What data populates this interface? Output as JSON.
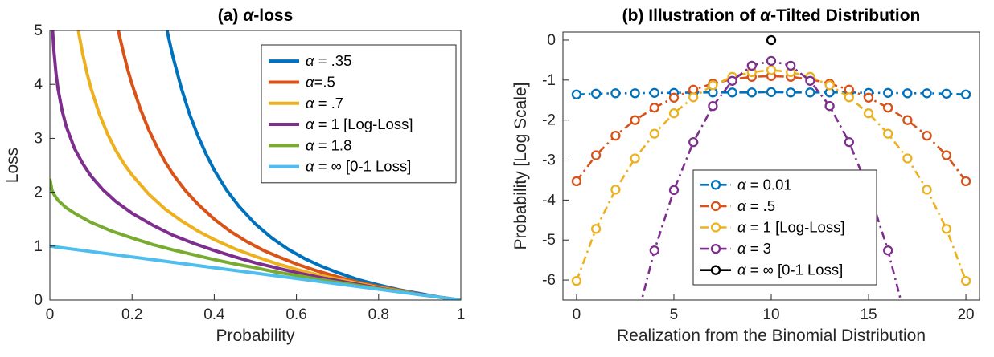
{
  "chart_data": [
    {
      "type": "line",
      "title": "(a) α-loss",
      "xlabel": "Probability",
      "ylabel": "Loss",
      "xlim": [
        0,
        1
      ],
      "ylim": [
        0,
        5
      ],
      "xticks": [
        0,
        0.2,
        0.4,
        0.6,
        0.8,
        1
      ],
      "xtick_labels": [
        "0",
        "0.2",
        "0.4",
        "0.6",
        "0.8",
        "1"
      ],
      "yticks": [
        0,
        1,
        2,
        3,
        4,
        5
      ],
      "ytick_labels": [
        "0",
        "1",
        "2",
        "3",
        "4",
        "5"
      ],
      "grid": false,
      "legend_position": "upper-right",
      "series": [
        {
          "name": "α = .35",
          "color": "#0072BD",
          "line": "solid",
          "marker": false,
          "points": [
            [
              0.28,
              5.19
            ],
            [
              0.29,
              4.83
            ],
            [
              0.3,
              4.5
            ],
            [
              0.32,
              3.93
            ],
            [
              0.34,
              3.45
            ],
            [
              0.36,
              3.05
            ],
            [
              0.38,
              2.71
            ],
            [
              0.4,
              2.41
            ],
            [
              0.43,
              2.04
            ],
            [
              0.46,
              1.74
            ],
            [
              0.5,
              1.41
            ],
            [
              0.54,
              1.15
            ],
            [
              0.58,
              0.94
            ],
            [
              0.62,
              0.77
            ],
            [
              0.66,
              0.63
            ],
            [
              0.7,
              0.51
            ],
            [
              0.75,
              0.38
            ],
            [
              0.8,
              0.28
            ],
            [
              0.85,
              0.19
            ],
            [
              0.9,
              0.12
            ],
            [
              0.95,
              0.05
            ],
            [
              1,
              0
            ]
          ]
        },
        {
          "name": "α=.5",
          "color": "#D95319",
          "line": "solid",
          "marker": false,
          "points": [
            [
              0.16,
              5.25
            ],
            [
              0.17,
              4.88
            ],
            [
              0.18,
              4.56
            ],
            [
              0.19,
              4.26
            ],
            [
              0.2,
              4.0
            ],
            [
              0.22,
              3.55
            ],
            [
              0.24,
              3.17
            ],
            [
              0.26,
              2.85
            ],
            [
              0.28,
              2.57
            ],
            [
              0.3,
              2.33
            ],
            [
              0.33,
              2.03
            ],
            [
              0.36,
              1.78
            ],
            [
              0.4,
              1.5
            ],
            [
              0.44,
              1.27
            ],
            [
              0.48,
              1.08
            ],
            [
              0.52,
              0.92
            ],
            [
              0.56,
              0.79
            ],
            [
              0.6,
              0.67
            ],
            [
              0.65,
              0.54
            ],
            [
              0.7,
              0.43
            ],
            [
              0.75,
              0.33
            ],
            [
              0.8,
              0.25
            ],
            [
              0.85,
              0.18
            ],
            [
              0.9,
              0.11
            ],
            [
              0.95,
              0.05
            ],
            [
              1,
              0
            ]
          ]
        },
        {
          "name": "α = .7",
          "color": "#EDB120",
          "line": "solid",
          "marker": false,
          "points": [
            [
              0.065,
              5.2
            ],
            [
              0.07,
              4.96
            ],
            [
              0.08,
              4.56
            ],
            [
              0.09,
              4.22
            ],
            [
              0.1,
              3.93
            ],
            [
              0.12,
              3.46
            ],
            [
              0.14,
              3.09
            ],
            [
              0.16,
              2.78
            ],
            [
              0.18,
              2.53
            ],
            [
              0.2,
              2.32
            ],
            [
              0.24,
              1.97
            ],
            [
              0.28,
              1.69
            ],
            [
              0.32,
              1.47
            ],
            [
              0.36,
              1.28
            ],
            [
              0.4,
              1.12
            ],
            [
              0.45,
              0.95
            ],
            [
              0.5,
              0.81
            ],
            [
              0.55,
              0.68
            ],
            [
              0.6,
              0.57
            ],
            [
              0.65,
              0.47
            ],
            [
              0.7,
              0.39
            ],
            [
              0.75,
              0.31
            ],
            [
              0.8,
              0.23
            ],
            [
              0.85,
              0.17
            ],
            [
              0.9,
              0.11
            ],
            [
              0.95,
              0.05
            ],
            [
              1,
              0
            ]
          ]
        },
        {
          "name": "α = 1 [Log-Loss]",
          "color": "#7E2F8E",
          "line": "solid",
          "marker": false,
          "points": [
            [
              0.005,
              5.3
            ],
            [
              0.007,
              4.96
            ],
            [
              0.01,
              4.61
            ],
            [
              0.015,
              4.2
            ],
            [
              0.02,
              3.91
            ],
            [
              0.03,
              3.51
            ],
            [
              0.04,
              3.22
            ],
            [
              0.06,
              2.81
            ],
            [
              0.08,
              2.53
            ],
            [
              0.1,
              2.3
            ],
            [
              0.13,
              2.04
            ],
            [
              0.16,
              1.83
            ],
            [
              0.2,
              1.61
            ],
            [
              0.25,
              1.39
            ],
            [
              0.3,
              1.2
            ],
            [
              0.35,
              1.05
            ],
            [
              0.4,
              0.92
            ],
            [
              0.45,
              0.8
            ],
            [
              0.5,
              0.69
            ],
            [
              0.55,
              0.6
            ],
            [
              0.6,
              0.51
            ],
            [
              0.65,
              0.43
            ],
            [
              0.7,
              0.36
            ],
            [
              0.75,
              0.29
            ],
            [
              0.8,
              0.22
            ],
            [
              0.85,
              0.16
            ],
            [
              0.9,
              0.11
            ],
            [
              0.95,
              0.05
            ],
            [
              1,
              0
            ]
          ]
        },
        {
          "name": "α = 1.8",
          "color": "#77AC30",
          "line": "solid",
          "marker": false,
          "points": [
            [
              0,
              2.25
            ],
            [
              0.005,
              2.04
            ],
            [
              0.01,
              1.96
            ],
            [
              0.02,
              1.85
            ],
            [
              0.04,
              1.71
            ],
            [
              0.06,
              1.61
            ],
            [
              0.1,
              1.44
            ],
            [
              0.15,
              1.28
            ],
            [
              0.2,
              1.15
            ],
            [
              0.25,
              1.03
            ],
            [
              0.3,
              0.93
            ],
            [
              0.35,
              0.84
            ],
            [
              0.4,
              0.75
            ],
            [
              0.45,
              0.67
            ],
            [
              0.5,
              0.6
            ],
            [
              0.55,
              0.52
            ],
            [
              0.6,
              0.46
            ],
            [
              0.65,
              0.39
            ],
            [
              0.7,
              0.33
            ],
            [
              0.75,
              0.27
            ],
            [
              0.8,
              0.21
            ],
            [
              0.85,
              0.16
            ],
            [
              0.9,
              0.1
            ],
            [
              0.95,
              0.05
            ],
            [
              1,
              0
            ]
          ]
        },
        {
          "name": "α = ∞ [0-1 Loss]",
          "color": "#4DBEEE",
          "line": "solid",
          "marker": false,
          "points": [
            [
              0,
              1
            ],
            [
              1,
              0
            ]
          ]
        }
      ]
    },
    {
      "type": "line",
      "title": "(b) Illustration of α-Tilted Distribution",
      "xlabel": "Realization from the Binomial Distribution",
      "ylabel": "Probability [Log Scale]",
      "xlim": [
        -0.7,
        20.7
      ],
      "ylim": [
        -6.5,
        0.2
      ],
      "xticks": [
        0,
        5,
        10,
        15,
        20
      ],
      "xtick_labels": [
        "0",
        "5",
        "10",
        "15",
        "20"
      ],
      "yticks": [
        0,
        -1,
        -2,
        -3,
        -4,
        -5,
        -6
      ],
      "ytick_labels": [
        "0",
        "-1",
        "-2",
        "-3",
        "-4",
        "-5",
        "-6"
      ],
      "grid": false,
      "legend_position": "lower-center-left",
      "series": [
        {
          "name": "α = 0.01",
          "color": "#0072BD",
          "line": "dashdot",
          "marker": true,
          "points": [
            [
              0,
              -1.36
            ],
            [
              1,
              -1.34
            ],
            [
              2,
              -1.33
            ],
            [
              3,
              -1.33
            ],
            [
              4,
              -1.32
            ],
            [
              5,
              -1.32
            ],
            [
              6,
              -1.31
            ],
            [
              7,
              -1.31
            ],
            [
              8,
              -1.31
            ],
            [
              9,
              -1.31
            ],
            [
              10,
              -1.3
            ],
            [
              11,
              -1.31
            ],
            [
              12,
              -1.31
            ],
            [
              13,
              -1.31
            ],
            [
              14,
              -1.31
            ],
            [
              15,
              -1.32
            ],
            [
              16,
              -1.32
            ],
            [
              17,
              -1.33
            ],
            [
              18,
              -1.33
            ],
            [
              19,
              -1.34
            ],
            [
              20,
              -1.36
            ]
          ]
        },
        {
          "name": "α = .5",
          "color": "#D95319",
          "line": "dashdot",
          "marker": true,
          "points": [
            [
              0,
              -3.53
            ],
            [
              1,
              -2.88
            ],
            [
              2,
              -2.39
            ],
            [
              3,
              -2.0
            ],
            [
              4,
              -1.69
            ],
            [
              5,
              -1.44
            ],
            [
              6,
              -1.24
            ],
            [
              7,
              -1.09
            ],
            [
              8,
              -0.98
            ],
            [
              9,
              -0.92
            ],
            [
              10,
              -0.9
            ],
            [
              11,
              -0.92
            ],
            [
              12,
              -0.98
            ],
            [
              13,
              -1.09
            ],
            [
              14,
              -1.24
            ],
            [
              15,
              -1.44
            ],
            [
              16,
              -1.69
            ],
            [
              17,
              -2.0
            ],
            [
              18,
              -2.39
            ],
            [
              19,
              -2.88
            ],
            [
              20,
              -3.53
            ]
          ]
        },
        {
          "name": "α = 1 [Log-Loss]",
          "color": "#EDB120",
          "line": "dashdot",
          "marker": true,
          "points": [
            [
              0,
              -6.02
            ],
            [
              1,
              -4.72
            ],
            [
              2,
              -3.74
            ],
            [
              3,
              -2.96
            ],
            [
              4,
              -2.34
            ],
            [
              5,
              -1.83
            ],
            [
              6,
              -1.43
            ],
            [
              7,
              -1.13
            ],
            [
              8,
              -0.92
            ],
            [
              9,
              -0.8
            ],
            [
              10,
              -0.75
            ],
            [
              11,
              -0.8
            ],
            [
              12,
              -0.92
            ],
            [
              13,
              -1.13
            ],
            [
              14,
              -1.43
            ],
            [
              15,
              -1.83
            ],
            [
              16,
              -2.34
            ],
            [
              17,
              -2.96
            ],
            [
              18,
              -3.74
            ],
            [
              19,
              -4.72
            ],
            [
              20,
              -6.02
            ]
          ]
        },
        {
          "name": "α = 3",
          "color": "#7E2F8E",
          "line": "dashdot",
          "marker": true,
          "points": [
            [
              3,
              -7.15
            ],
            [
              4,
              -5.26
            ],
            [
              5,
              -3.75
            ],
            [
              6,
              -2.55
            ],
            [
              7,
              -1.65
            ],
            [
              8,
              -1.02
            ],
            [
              9,
              -0.64
            ],
            [
              10,
              -0.52
            ],
            [
              11,
              -0.64
            ],
            [
              12,
              -1.02
            ],
            [
              13,
              -1.65
            ],
            [
              14,
              -2.55
            ],
            [
              15,
              -3.75
            ],
            [
              16,
              -5.26
            ],
            [
              17,
              -7.15
            ]
          ]
        },
        {
          "name": "α = ∞ [0-1 Loss]",
          "color": "#000000",
          "line": "solid",
          "marker": true,
          "points": [
            [
              10,
              0
            ]
          ]
        }
      ]
    }
  ]
}
